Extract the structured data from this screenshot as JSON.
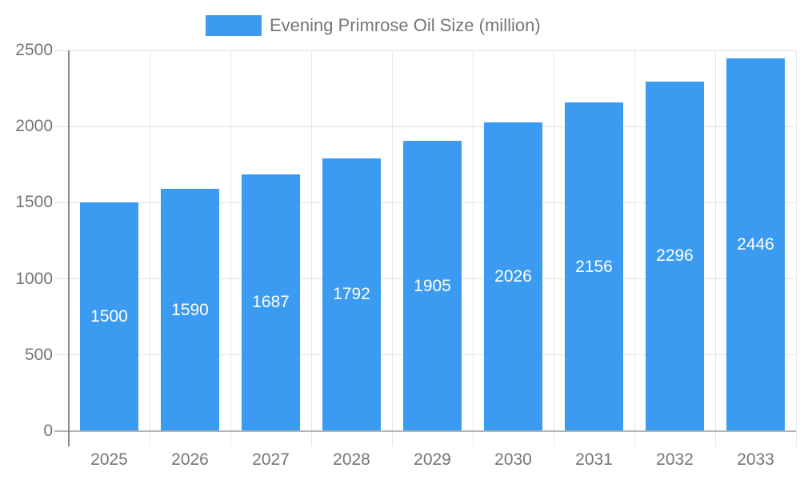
{
  "chart_data": {
    "type": "bar",
    "title": "Evening Primrose Oil Size (million)",
    "categories": [
      "2025",
      "2026",
      "2027",
      "2028",
      "2029",
      "2030",
      "2031",
      "2032",
      "2033"
    ],
    "values": [
      1500,
      1590,
      1687,
      1792,
      1905,
      2026,
      2156,
      2296,
      2446
    ],
    "xlabel": "",
    "ylabel": "",
    "ylim": [
      0,
      2500
    ],
    "yticks": [
      0,
      500,
      1000,
      1500,
      2000,
      2500
    ],
    "grid": true,
    "legend_position": "top-center",
    "value_labels": "inside-bar-centered"
  },
  "legend": {
    "label": "Evening Primrose Oil Size (million)"
  },
  "colors": {
    "bar": "#3B9BF0",
    "axis_text": "#757575",
    "grid_horizontal": "#E2E2E2",
    "grid_vertical": "#E6E6E6",
    "baseline": "#B3B3B3",
    "y_axis_line": "#888888",
    "value_label": "#FFFFFF",
    "background": "#FFFFFF"
  }
}
